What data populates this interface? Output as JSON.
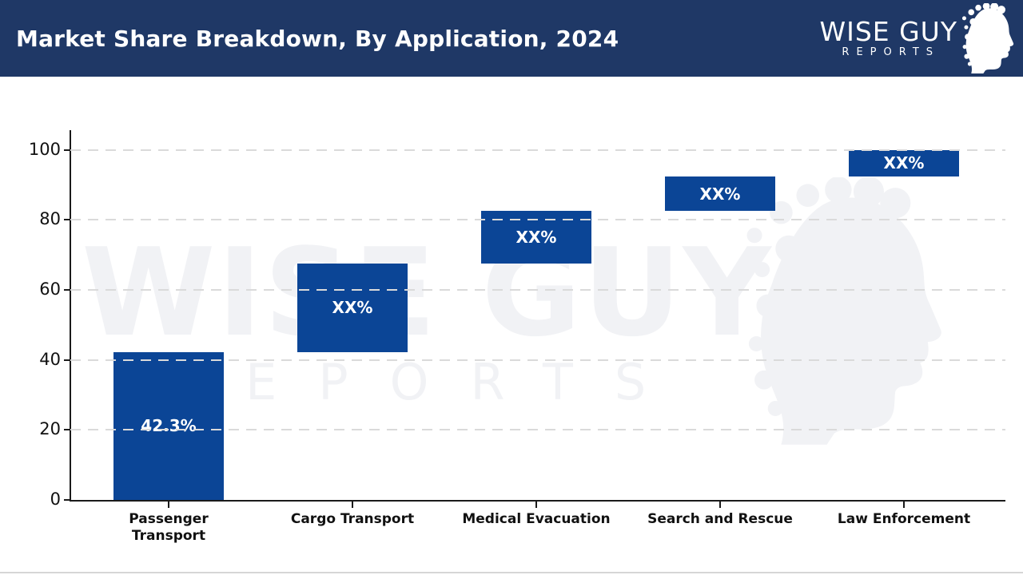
{
  "header": {
    "title": "Market Share Breakdown, By Application, 2024",
    "logo": {
      "line1": "WISE GUY",
      "line2": "REPORTS"
    }
  },
  "watermark": {
    "line1": "WISE GUY",
    "line2": "REPORTS"
  },
  "chart_data": {
    "type": "bar",
    "subtype": "waterfall",
    "title": "Market Share Breakdown, By Application, 2024",
    "unit": "percent market share",
    "categories": [
      "Passenger Transport",
      "Cargo Transport",
      "Medical Evacuation",
      "Search and Rescue",
      "Law Enforcement"
    ],
    "category_label_lines": [
      [
        "Passenger",
        "Transport"
      ],
      [
        "Cargo Transport"
      ],
      [
        "Medical Evacuation"
      ],
      [
        "Search and Rescue"
      ],
      [
        "Law Enforcement"
      ]
    ],
    "series": [
      {
        "name": "Market share (%)",
        "segments": [
          {
            "category": "Passenger Transport",
            "start": 0,
            "end": 42.3,
            "label": "42.3%"
          },
          {
            "category": "Cargo Transport",
            "start": 42.3,
            "end": 67.4,
            "label": "XX%"
          },
          {
            "category": "Medical Evacuation",
            "start": 67.4,
            "end": 82.5,
            "label": "XX%"
          },
          {
            "category": "Search and Rescue",
            "start": 82.5,
            "end": 92.3,
            "label": "XX%"
          },
          {
            "category": "Law Enforcement",
            "start": 92.3,
            "end": 100,
            "label": "XX%"
          }
        ]
      }
    ],
    "ylim": [
      0,
      100
    ],
    "yticks": [
      0,
      20,
      40,
      60,
      80,
      100
    ],
    "grid": "horizontal-dashed",
    "legend": "none",
    "bar_color": "#0B4596"
  },
  "colors": {
    "header_bg": "#1F3866",
    "bar": "#0B4596",
    "axis": "#1a1a1a",
    "gridline": "#dadada",
    "watermark": "#f1f2f5",
    "value_label": "#ffffff"
  }
}
